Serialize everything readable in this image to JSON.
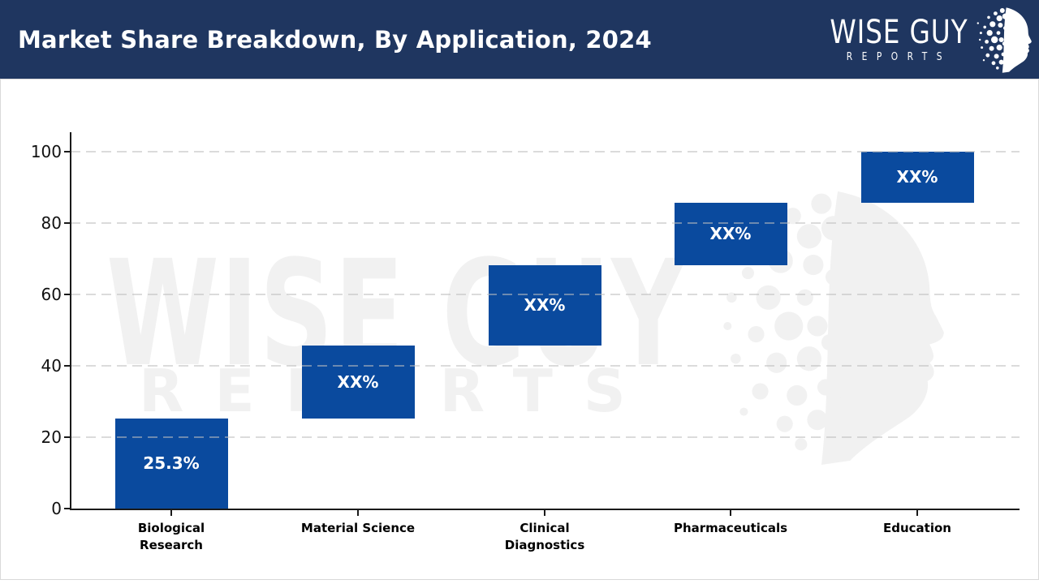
{
  "header": {
    "title": "Market Share Breakdown, By Application, 2024",
    "logo": {
      "line1": "WISE GUY",
      "line2": "REPORTS"
    }
  },
  "watermark": {
    "line1": "WISE GUY",
    "line2": "REPORTS"
  },
  "colors": {
    "header_bg": "#1f3660",
    "bar": "#0a4a9e",
    "bar_label": "#ffffff",
    "axis": "#1a1a1a",
    "tick_label": "#111111",
    "grid": "rgba(190,190,190,0.55)",
    "watermark": "#f1f1f1",
    "panel_border": "#d9d9d9"
  },
  "chart_data": {
    "type": "bar",
    "subtype": "waterfall",
    "title": "Market Share Breakdown, By Application, 2024",
    "categories": [
      "Biological\nResearch",
      "Material Science",
      "Clinical\nDiagnostics",
      "Pharmaceuticals",
      "Education"
    ],
    "series": [
      {
        "name": "Market share (%)",
        "segments": [
          {
            "category": "Biological Research",
            "start": 0,
            "end": 25.3,
            "label": "25.3%"
          },
          {
            "category": "Material Science",
            "start": 25.3,
            "end": 45.6,
            "label": "XX%"
          },
          {
            "category": "Clinical Diagnostics",
            "start": 45.6,
            "end": 68.2,
            "label": "XX%"
          },
          {
            "category": "Pharmaceuticals",
            "start": 68.2,
            "end": 85.6,
            "label": "XX%"
          },
          {
            "category": "Education",
            "start": 85.6,
            "end": 100,
            "label": "XX%"
          }
        ]
      }
    ],
    "xlabel": "",
    "ylabel": "",
    "ylim": [
      0,
      105.5
    ],
    "yticks": [
      0,
      20,
      40,
      60,
      80,
      100
    ],
    "grid": "horizontal-dashed",
    "legend": false
  }
}
